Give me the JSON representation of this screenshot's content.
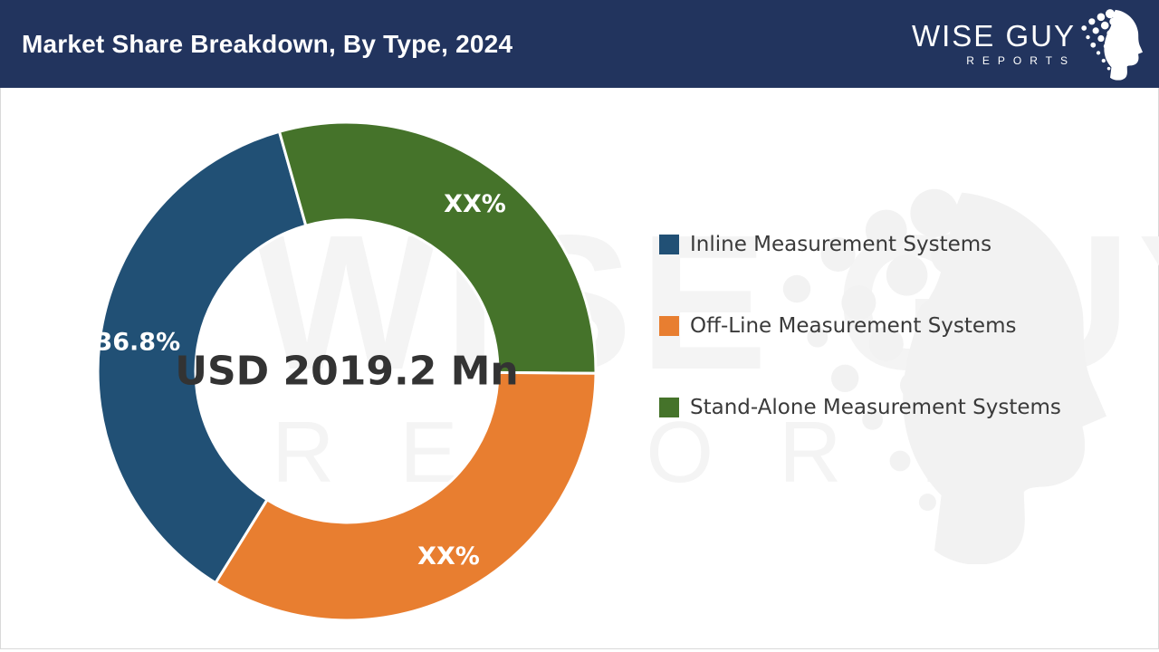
{
  "header": {
    "title": "Market Share Breakdown, By Type, 2024",
    "logo_line1": "WISE GUY",
    "logo_line2": "REPORTS"
  },
  "watermark": {
    "line1": "WISE GUY",
    "line2": "REPORTS"
  },
  "colors": {
    "header_bg": "#22345e",
    "frame_border": "#d9d9d9",
    "inline_blue": "#215075",
    "offline_orange": "#e87e30",
    "standalone_green": "#45732a",
    "center_label_text": "#333333",
    "slice_label_text": "#ffffff",
    "watermark_gray": "#f4f4f4"
  },
  "chart_data": {
    "type": "pie",
    "subtype": "donut",
    "title": "Market Share Breakdown, By Type, 2024",
    "center_label": "USD 2019.2 Mn",
    "start_angle_deg": 211.8,
    "direction": "clockwise",
    "legend_position": "right",
    "segments": [
      {
        "name": "Inline Measurement Systems",
        "value_pct": 36.8,
        "label": "36.8%",
        "color": "#215075"
      },
      {
        "name": "Stand-Alone Measurement Systems",
        "value_pct": 29.5,
        "label": "XX%",
        "color": "#45732a"
      },
      {
        "name": "Off-Line Measurement Systems",
        "value_pct": 33.7,
        "label": "XX%",
        "color": "#e87e30"
      }
    ]
  },
  "legend": {
    "items": [
      {
        "label": "Inline Measurement Systems",
        "color": "#215075"
      },
      {
        "label": "Off-Line Measurement Systems",
        "color": "#e87e30"
      },
      {
        "label": "Stand-Alone Measurement Systems",
        "color": "#45732a"
      }
    ]
  }
}
